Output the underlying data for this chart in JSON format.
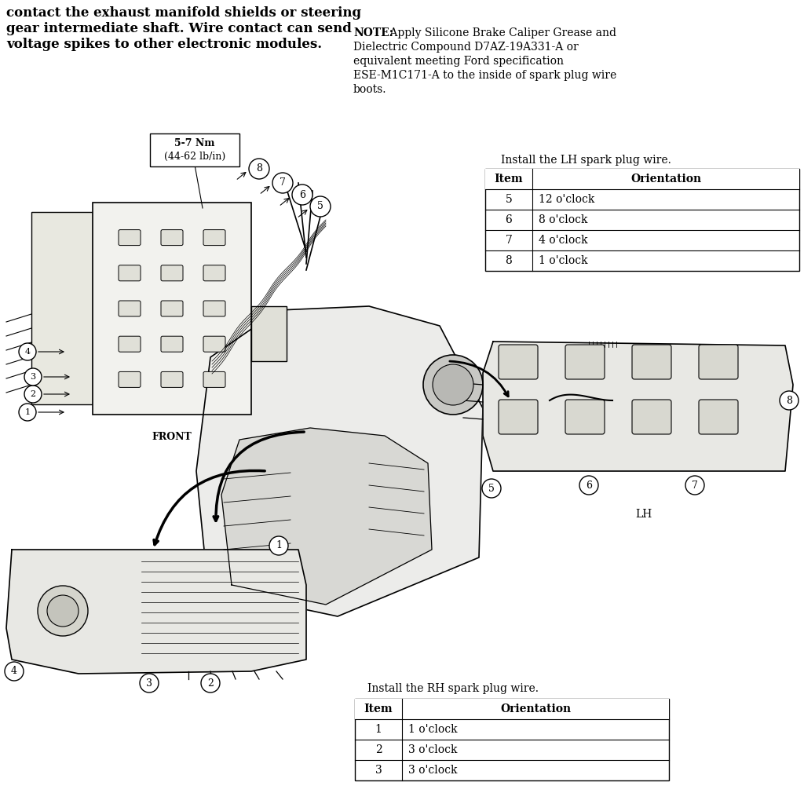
{
  "bg_color": "#ffffff",
  "warning_text_line1": "contact the exhaust manifold shields or steering",
  "warning_text_line2": "gear intermediate shaft. Wire contact can send",
  "warning_text_line3": "voltage spikes to other electronic modules.",
  "note_bold": "NOTE:",
  "note_rest_line1": " Apply Silicone Brake Caliper Grease and",
  "note_line2": "Dielectric Compound D7AZ-19A331-A or",
  "note_line3": "equivalent meeting Ford specification",
  "note_line4": "ESE-M1C171-A to the inside of spark plug wire",
  "note_line5": "boots.",
  "lh_title": "Install the LH spark plug wire.",
  "lh_table_headers": [
    "Item",
    "Orientation"
  ],
  "lh_table_rows": [
    [
      "5",
      "12 o'clock"
    ],
    [
      "6",
      "8 o'clock"
    ],
    [
      "7",
      "4 o'clock"
    ],
    [
      "8",
      "1 o'clock"
    ]
  ],
  "rh_title": "Install the RH spark plug wire.",
  "rh_table_headers": [
    "Item",
    "Orientation"
  ],
  "rh_table_rows": [
    [
      "1",
      "1 o'clock"
    ],
    [
      "2",
      "3 o'clock"
    ],
    [
      "3",
      "3 o'clock"
    ]
  ],
  "front_label": "FRONT",
  "lh_label": "LH",
  "torque_line1": "5-7 Nm",
  "torque_line2": "(44-62 lb/in)"
}
